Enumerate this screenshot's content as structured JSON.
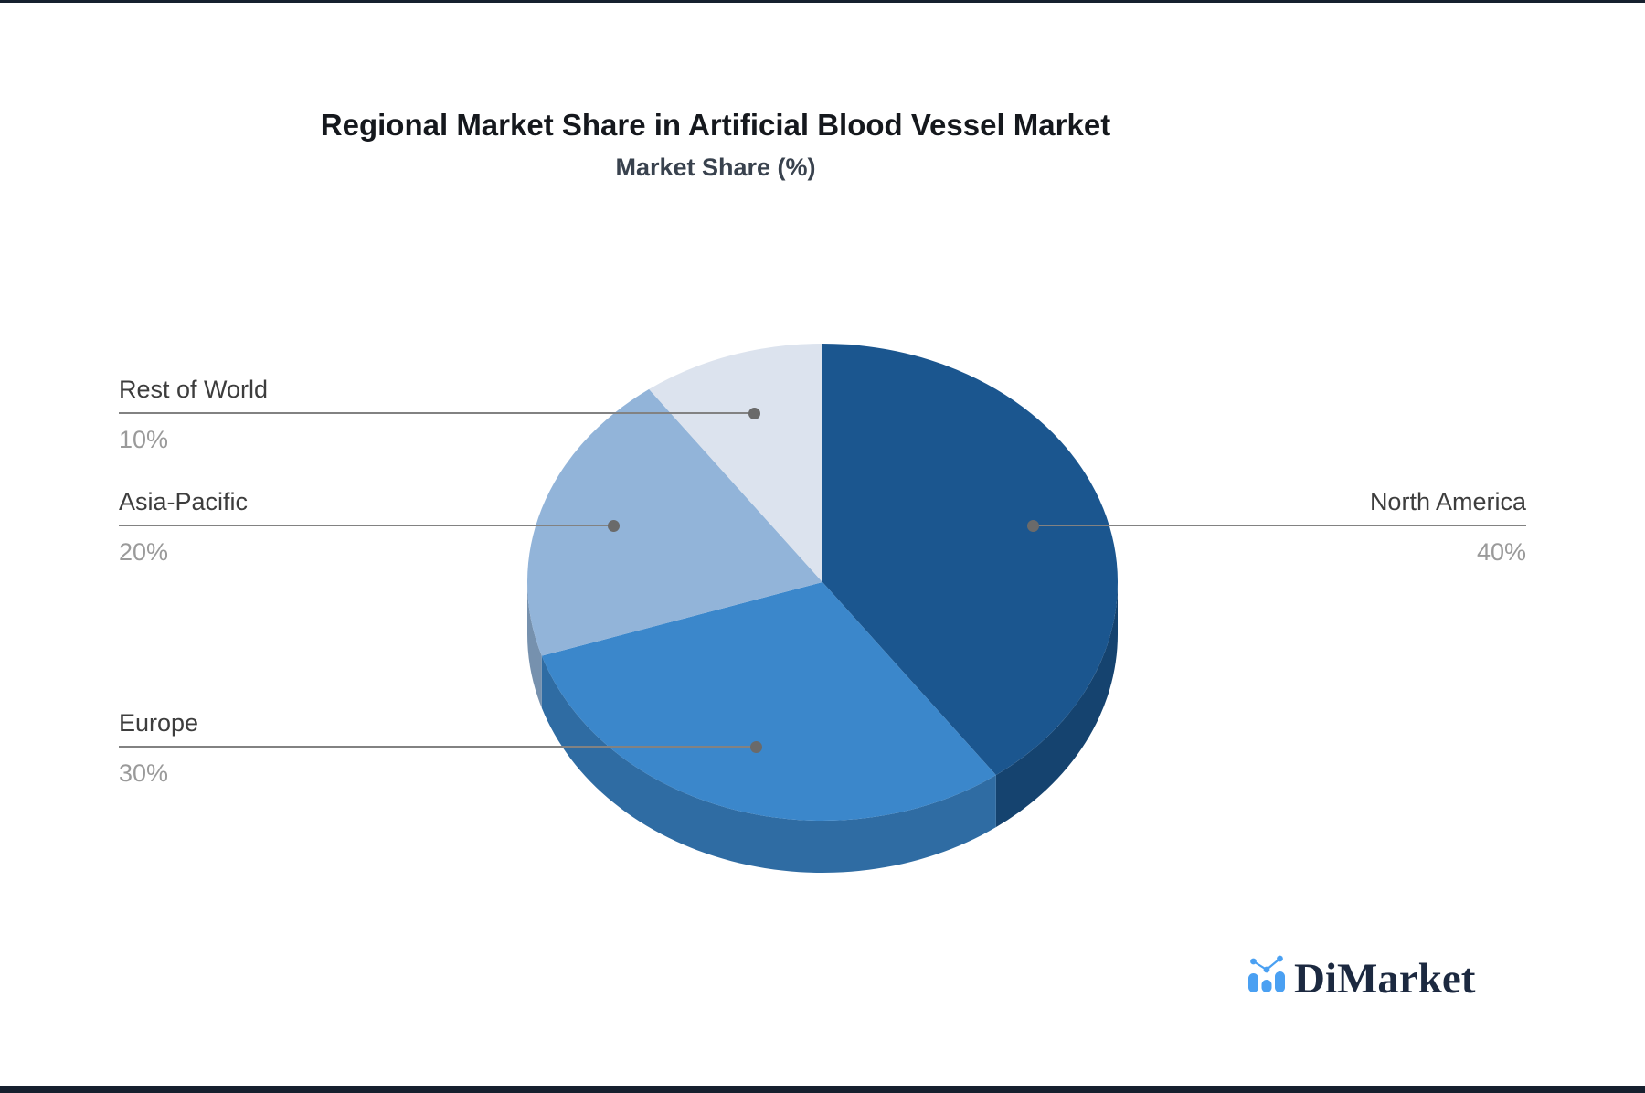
{
  "page": {
    "background": "#ffffff",
    "frame_color": "#16202e"
  },
  "chart_data": {
    "type": "pie",
    "style": "3d",
    "title": "Regional Market Share in Artificial Blood Vessel Market",
    "subtitle": "Market Share (%)",
    "unit": "%",
    "rotation": "clockwise-from-top",
    "legend_position": "callout-labels",
    "slices": [
      {
        "label": "North America",
        "value": 40,
        "color": "#1b568f",
        "side_color": "#15436f",
        "label_side": "right"
      },
      {
        "label": "Europe",
        "value": 30,
        "color": "#3b87cb",
        "side_color": "#2f6ca3",
        "label_side": "left"
      },
      {
        "label": "Asia-Pacific",
        "value": 20,
        "color": "#92b4d9",
        "side_color": "#7691ae",
        "label_side": "left"
      },
      {
        "label": "Rest of World",
        "value": 10,
        "color": "#dce3ee",
        "side_color": "#b2bac6",
        "label_side": "left"
      }
    ],
    "label_colors": {
      "name": "#3d3d3d",
      "value": "#9a9a9a",
      "leader_line": "#828282"
    }
  },
  "branding": {
    "logo_text": "DiMarket",
    "logo_text_color": "#1c2940",
    "logo_icon": "bar-line-chart-icon",
    "logo_icon_color": "#4aa0f2"
  }
}
